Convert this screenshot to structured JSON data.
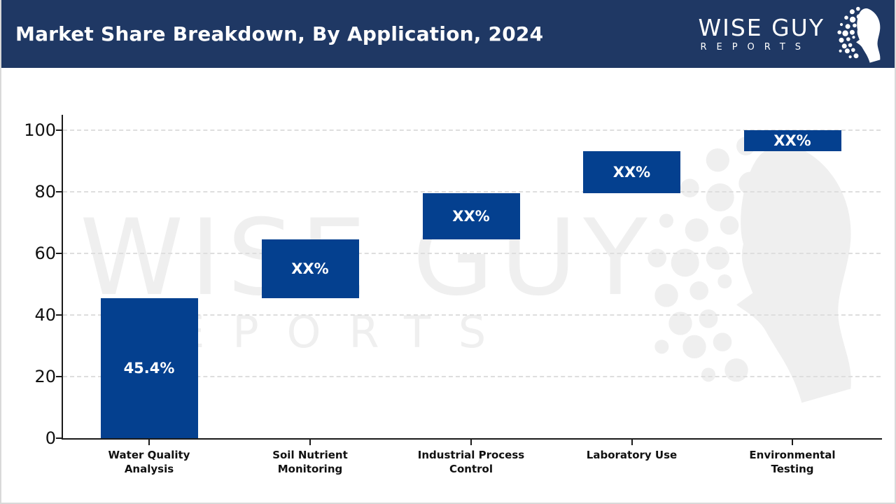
{
  "header": {
    "title": "Market Share Breakdown, By Application, 2024",
    "bg_color": "#1f3864",
    "logo": {
      "line1": "WISE GUY",
      "line2": "REPORTS"
    }
  },
  "watermark": {
    "line1": "WISE GUY",
    "line2": "REPORTS"
  },
  "chart_data": {
    "type": "bar",
    "subtype": "waterfall",
    "title": "Market Share Breakdown, By Application, 2024",
    "categories": [
      "Water Quality Analysis",
      "Soil Nutrient Monitoring",
      "Industrial Process Control",
      "Laboratory Use",
      "Environmental Testing"
    ],
    "category_lines": [
      [
        "Water Quality",
        "Analysis"
      ],
      [
        "Soil Nutrient",
        "Monitoring"
      ],
      [
        "Industrial Process",
        "Control"
      ],
      [
        "Laboratory Use"
      ],
      [
        "Environmental",
        "Testing"
      ]
    ],
    "segments": [
      {
        "category": "Water Quality Analysis",
        "start": 0,
        "end": 45.4,
        "label": "45.4%"
      },
      {
        "category": "Soil Nutrient Monitoring",
        "start": 45.4,
        "end": 64.5,
        "label": "XX%"
      },
      {
        "category": "Industrial Process Control",
        "start": 64.5,
        "end": 79.6,
        "label": "XX%"
      },
      {
        "category": "Laboratory Use",
        "start": 79.6,
        "end": 93.1,
        "label": "XX%"
      },
      {
        "category": "Environmental Testing",
        "start": 93.1,
        "end": 100,
        "label": "XX%"
      }
    ],
    "ylim": [
      0,
      100
    ],
    "yticks": [
      0,
      20,
      40,
      60,
      80,
      100
    ],
    "grid": "dashed-horizontal",
    "legend": "none",
    "bar_color": "#04408f",
    "bar_label_color": "#ffffff",
    "axis_color": "#1a1a1a",
    "grid_color": "#dedede",
    "watermark_color": "#efefef"
  }
}
